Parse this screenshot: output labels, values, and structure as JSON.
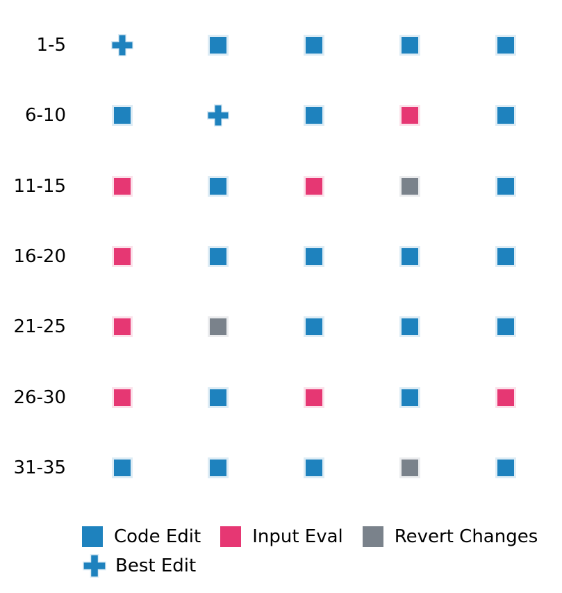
{
  "figure": {
    "background": "#ffffff",
    "text_color": "#000000"
  },
  "colors": {
    "blue": "#1e82be",
    "pink": "#e63773",
    "gray": "#7a828b"
  },
  "chart_data": {
    "type": "scatter",
    "row_labels": [
      "1-5",
      "6-10",
      "11-15",
      "16-20",
      "21-25",
      "26-30",
      "31-35"
    ],
    "columns_per_row": 5,
    "marker_styles": {
      "code_edit": {
        "shape": "square",
        "color": "#1e82be",
        "label": "Code Edit"
      },
      "input_eval": {
        "shape": "square",
        "color": "#e63773",
        "label": "Input Eval"
      },
      "revert_changes": {
        "shape": "square",
        "color": "#7a828b",
        "label": "Revert Changes"
      },
      "best_edit": {
        "shape": "plus",
        "color": "#1e82be",
        "label": "Best Edit"
      }
    },
    "grid": [
      [
        "best_edit",
        "code_edit",
        "code_edit",
        "code_edit",
        "code_edit"
      ],
      [
        "code_edit",
        "best_edit",
        "code_edit",
        "input_eval",
        "code_edit"
      ],
      [
        "input_eval",
        "code_edit",
        "input_eval",
        "revert_changes",
        "code_edit"
      ],
      [
        "input_eval",
        "code_edit",
        "code_edit",
        "code_edit",
        "code_edit"
      ],
      [
        "input_eval",
        "revert_changes",
        "code_edit",
        "code_edit",
        "code_edit"
      ],
      [
        "input_eval",
        "code_edit",
        "input_eval",
        "code_edit",
        "input_eval"
      ],
      [
        "code_edit",
        "code_edit",
        "code_edit",
        "revert_changes",
        "code_edit"
      ]
    ],
    "legend": {
      "position": "bottom-left",
      "items": [
        {
          "key": "code_edit",
          "label": "Code Edit"
        },
        {
          "key": "input_eval",
          "label": "Input Eval"
        },
        {
          "key": "revert_changes",
          "label": "Revert Changes"
        },
        {
          "key": "best_edit",
          "label": "Best Edit"
        }
      ]
    },
    "title": "",
    "xlabel": "",
    "ylabel": "",
    "grid_lines": false
  }
}
